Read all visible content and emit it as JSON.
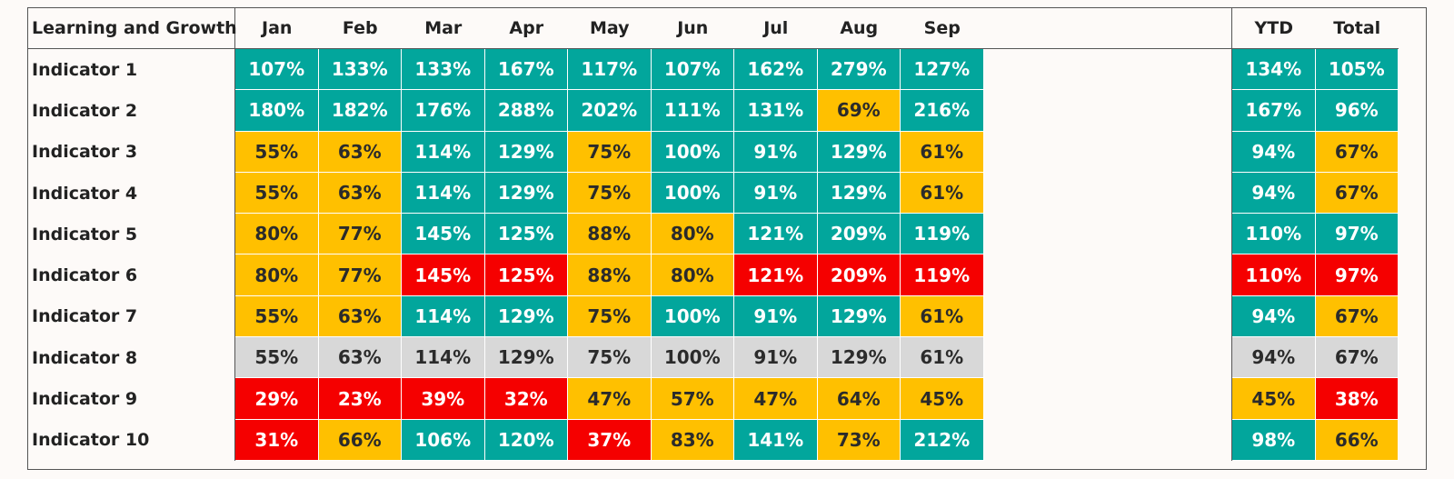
{
  "table": {
    "title": "Learning and Growth",
    "months": [
      "Jan",
      "Feb",
      "Mar",
      "Apr",
      "May",
      "Jun",
      "Jul",
      "Aug",
      "Sep"
    ],
    "ytd_label": "YTD",
    "total_label": "Total",
    "colors": {
      "green": "#02a69c",
      "amber": "#ffc000",
      "red": "#f50000",
      "grey": "#d8d8d8"
    },
    "rows": [
      {
        "name": "Indicator 1",
        "values": [
          "107%",
          "133%",
          "133%",
          "167%",
          "117%",
          "107%",
          "162%",
          "279%",
          "127%"
        ],
        "status": [
          "g",
          "g",
          "g",
          "g",
          "g",
          "g",
          "g",
          "g",
          "g"
        ],
        "ytd": "134%",
        "ytd_status": "g",
        "total": "105%",
        "total_status": "g"
      },
      {
        "name": "Indicator 2",
        "values": [
          "180%",
          "182%",
          "176%",
          "288%",
          "202%",
          "111%",
          "131%",
          "69%",
          "216%"
        ],
        "status": [
          "g",
          "g",
          "g",
          "g",
          "g",
          "g",
          "g",
          "y",
          "g"
        ],
        "ytd": "167%",
        "ytd_status": "g",
        "total": "96%",
        "total_status": "g"
      },
      {
        "name": "Indicator 3",
        "values": [
          "55%",
          "63%",
          "114%",
          "129%",
          "75%",
          "100%",
          "91%",
          "129%",
          "61%"
        ],
        "status": [
          "y",
          "y",
          "g",
          "g",
          "y",
          "g",
          "g",
          "g",
          "y"
        ],
        "ytd": "94%",
        "ytd_status": "g",
        "total": "67%",
        "total_status": "y"
      },
      {
        "name": "Indicator 4",
        "values": [
          "55%",
          "63%",
          "114%",
          "129%",
          "75%",
          "100%",
          "91%",
          "129%",
          "61%"
        ],
        "status": [
          "y",
          "y",
          "g",
          "g",
          "y",
          "g",
          "g",
          "g",
          "y"
        ],
        "ytd": "94%",
        "ytd_status": "g",
        "total": "67%",
        "total_status": "y"
      },
      {
        "name": "Indicator 5",
        "values": [
          "80%",
          "77%",
          "145%",
          "125%",
          "88%",
          "80%",
          "121%",
          "209%",
          "119%"
        ],
        "status": [
          "y",
          "y",
          "g",
          "g",
          "y",
          "y",
          "g",
          "g",
          "g"
        ],
        "ytd": "110%",
        "ytd_status": "g",
        "total": "97%",
        "total_status": "g"
      },
      {
        "name": "Indicator 6",
        "values": [
          "80%",
          "77%",
          "145%",
          "125%",
          "88%",
          "80%",
          "121%",
          "209%",
          "119%"
        ],
        "status": [
          "y",
          "y",
          "r",
          "r",
          "y",
          "y",
          "r",
          "r",
          "r"
        ],
        "ytd": "110%",
        "ytd_status": "r",
        "total": "97%",
        "total_status": "r"
      },
      {
        "name": "Indicator 7",
        "values": [
          "55%",
          "63%",
          "114%",
          "129%",
          "75%",
          "100%",
          "91%",
          "129%",
          "61%"
        ],
        "status": [
          "y",
          "y",
          "g",
          "g",
          "y",
          "g",
          "g",
          "g",
          "y"
        ],
        "ytd": "94%",
        "ytd_status": "g",
        "total": "67%",
        "total_status": "y"
      },
      {
        "name": "Indicator 8",
        "values": [
          "55%",
          "63%",
          "114%",
          "129%",
          "75%",
          "100%",
          "91%",
          "129%",
          "61%"
        ],
        "status": [
          "s",
          "s",
          "s",
          "s",
          "s",
          "s",
          "s",
          "s",
          "s"
        ],
        "ytd": "94%",
        "ytd_status": "s",
        "total": "67%",
        "total_status": "s"
      },
      {
        "name": "Indicator 9",
        "values": [
          "29%",
          "23%",
          "39%",
          "32%",
          "47%",
          "57%",
          "47%",
          "64%",
          "45%"
        ],
        "status": [
          "r",
          "r",
          "r",
          "r",
          "y",
          "y",
          "y",
          "y",
          "y"
        ],
        "ytd": "45%",
        "ytd_status": "y",
        "total": "38%",
        "total_status": "r"
      },
      {
        "name": "Indicator 10",
        "values": [
          "31%",
          "66%",
          "106%",
          "120%",
          "37%",
          "83%",
          "141%",
          "73%",
          "212%"
        ],
        "status": [
          "r",
          "y",
          "g",
          "g",
          "r",
          "y",
          "g",
          "y",
          "g"
        ],
        "ytd": "98%",
        "ytd_status": "g",
        "total": "66%",
        "total_status": "y"
      }
    ]
  }
}
